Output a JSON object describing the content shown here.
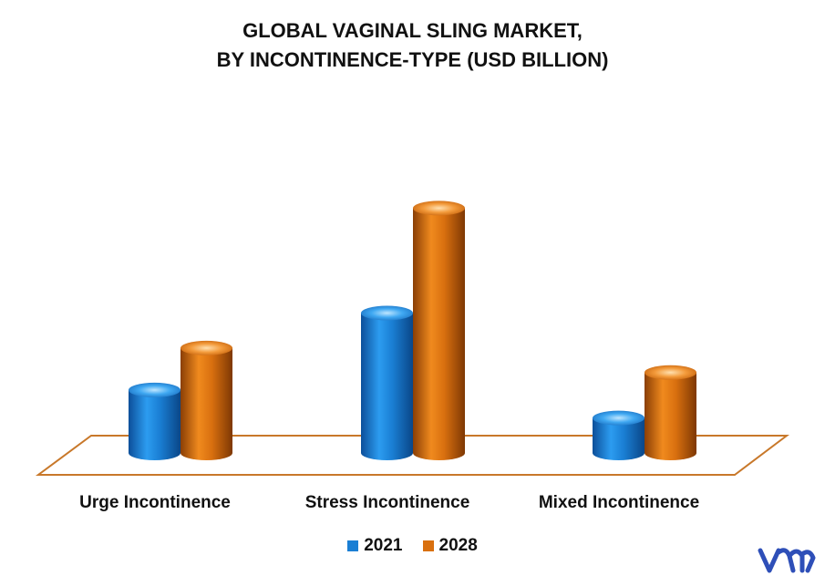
{
  "chart_data": {
    "type": "bar",
    "title_line1": "GLOBAL VAGINAL SLING MARKET,",
    "title_line2": "BY INCONTINENCE-TYPE  (USD BILLION)",
    "categories": [
      "Urge Incontinence",
      "Stress Incontinence",
      "Mixed Incontinence"
    ],
    "series": [
      {
        "name": "2021",
        "values": [
          0.9,
          2.0,
          0.5
        ]
      },
      {
        "name": "2028",
        "values": [
          1.5,
          3.5,
          1.15
        ]
      }
    ],
    "ylim": [
      0,
      4
    ],
    "grid": false,
    "legend": "bottom-center",
    "colors": {
      "2021": "#1a7fd4",
      "2028": "#d9700f",
      "floor": "#c8782a"
    }
  }
}
